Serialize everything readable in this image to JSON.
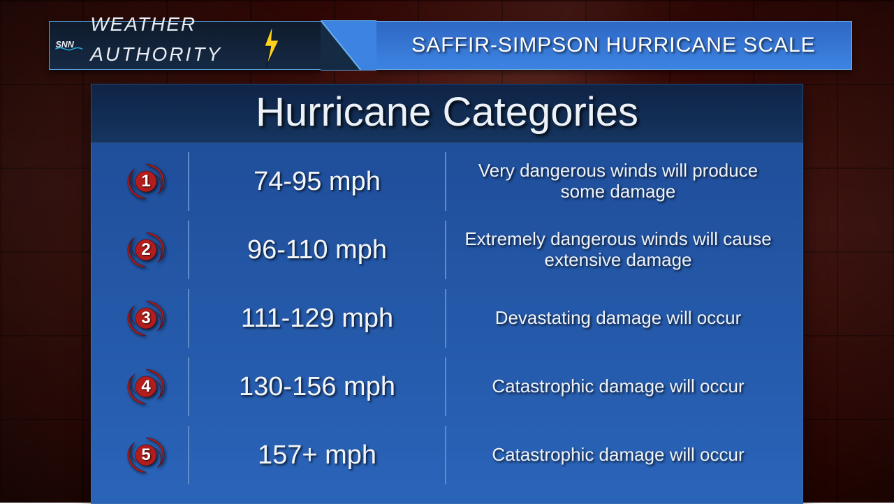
{
  "header": {
    "network": "SNN",
    "brand_line1": "WEATHER",
    "brand_line2": "AUTHORITY",
    "title": "SAFFIR-SIMPSON HURRICANE SCALE",
    "logo_text_fill": "#ffffff",
    "logo_text_stroke": "#0b1c33",
    "logo_wave_color": "#2aa8d8",
    "bolt_fill": "#ffd11a",
    "bolt_stroke": "#0b1c33",
    "banner_dark_bg_top": "#0f1b2c",
    "banner_dark_bg_bottom": "#162a44",
    "banner_light_bg_top": "#2f67c4",
    "banner_light_bg_bottom": "#3d84e2",
    "banner_border": "#5aa7e8"
  },
  "panel": {
    "title": "Hurricane Categories",
    "title_fontsize": 58,
    "speed_fontsize": 38,
    "desc_fontsize": 26,
    "head_bg_top": "#0f2345",
    "head_bg_bottom": "#153560",
    "body_bg_top": "#1f4e9a",
    "body_bg_bottom": "#2a64b9",
    "divider_color": "#5d8cc6",
    "text_color": "#f2f6fa",
    "badge_fill": "#b51d1d",
    "badge_shadow": "#5a0e0e"
  },
  "categories": [
    {
      "num": "1",
      "speed": "74-95 mph",
      "desc": "Very dangerous winds will produce some damage"
    },
    {
      "num": "2",
      "speed": "96-110 mph",
      "desc": "Extremely dangerous winds will cause extensive damage"
    },
    {
      "num": "3",
      "speed": "111-129 mph",
      "desc": "Devastating damage will occur"
    },
    {
      "num": "4",
      "speed": "130-156 mph",
      "desc": "Catastrophic damage will occur"
    },
    {
      "num": "5",
      "speed": "157+ mph",
      "desc": "Catastrophic damage will occur"
    }
  ]
}
